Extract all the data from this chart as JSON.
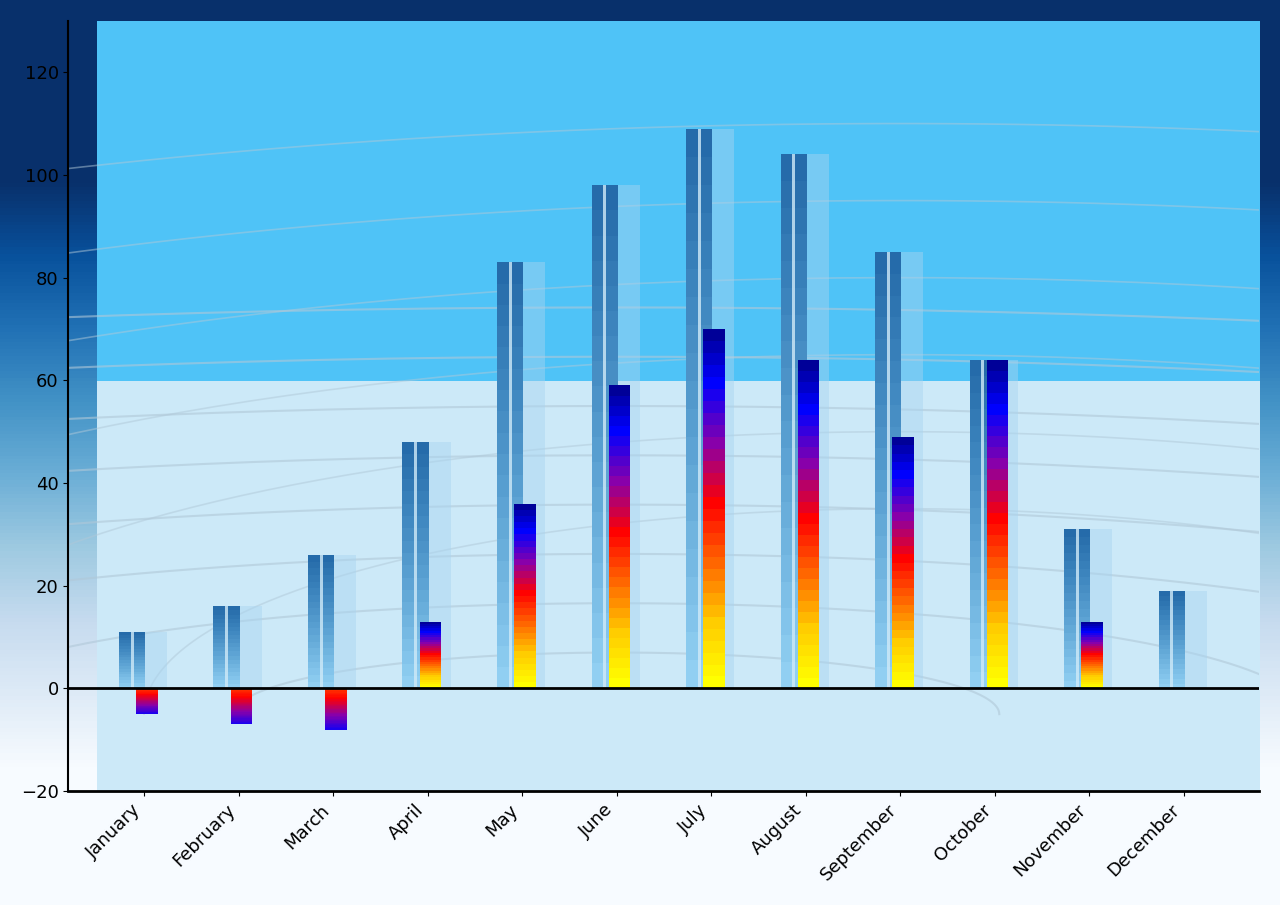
{
  "months": [
    "January",
    "February",
    "March",
    "April",
    "May",
    "June",
    "July",
    "August",
    "September",
    "October",
    "November",
    "December"
  ],
  "series1": [
    11,
    16,
    26,
    48,
    83,
    98,
    109,
    104,
    85,
    64,
    31,
    19
  ],
  "series2": [
    -5,
    -7,
    -8,
    13,
    36,
    59,
    70,
    64,
    49,
    64,
    13,
    0
  ],
  "ylim": [
    -20,
    130
  ],
  "yticks": [
    -20,
    0,
    20,
    40,
    60,
    80,
    100,
    120
  ],
  "bg_top": "#5bc8f5",
  "bg_bottom": "#cce9f8",
  "bar1_color_light": "#5ab4f0",
  "bar1_color_dark": "#1a6fb5",
  "bar2_heat_colors": [
    "#ff0000",
    "#ff4400",
    "#ff8800",
    "#ffcc00",
    "#ffff00",
    "#1a1aff",
    "#000080"
  ],
  "axis_color": "#000000",
  "grid_color": "#b0c8d8"
}
